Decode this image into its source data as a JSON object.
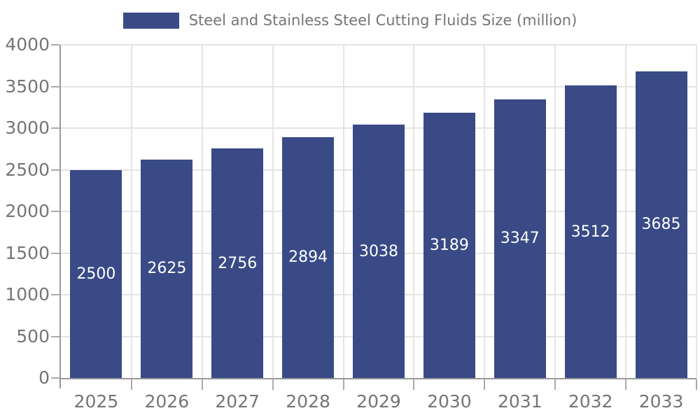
{
  "chart_data": {
    "type": "bar",
    "legend": {
      "label": "Steel and Stainless Steel Cutting Fluids Size (million)",
      "position": "top-center"
    },
    "categories": [
      "2025",
      "2026",
      "2027",
      "2028",
      "2029",
      "2030",
      "2031",
      "2032",
      "2033"
    ],
    "values": [
      2500,
      2625,
      2756,
      2894,
      3038,
      3189,
      3347,
      3512,
      3685
    ],
    "value_labels_position": "inside-center",
    "ylim": [
      0,
      4000
    ],
    "ytick_labels": [
      "0",
      "500",
      "1000",
      "1500",
      "2000",
      "2500",
      "3000",
      "3500",
      "4000"
    ],
    "grid": "both",
    "legend_clickable": false,
    "colors": {
      "bar": "#394A86",
      "value_label": "#FFFFFF",
      "tick_label": "#757575",
      "legend_label": "#757575",
      "gridline": "#E4E4E4",
      "axis_line": "#999999",
      "background": "#FFFFFF"
    }
  }
}
